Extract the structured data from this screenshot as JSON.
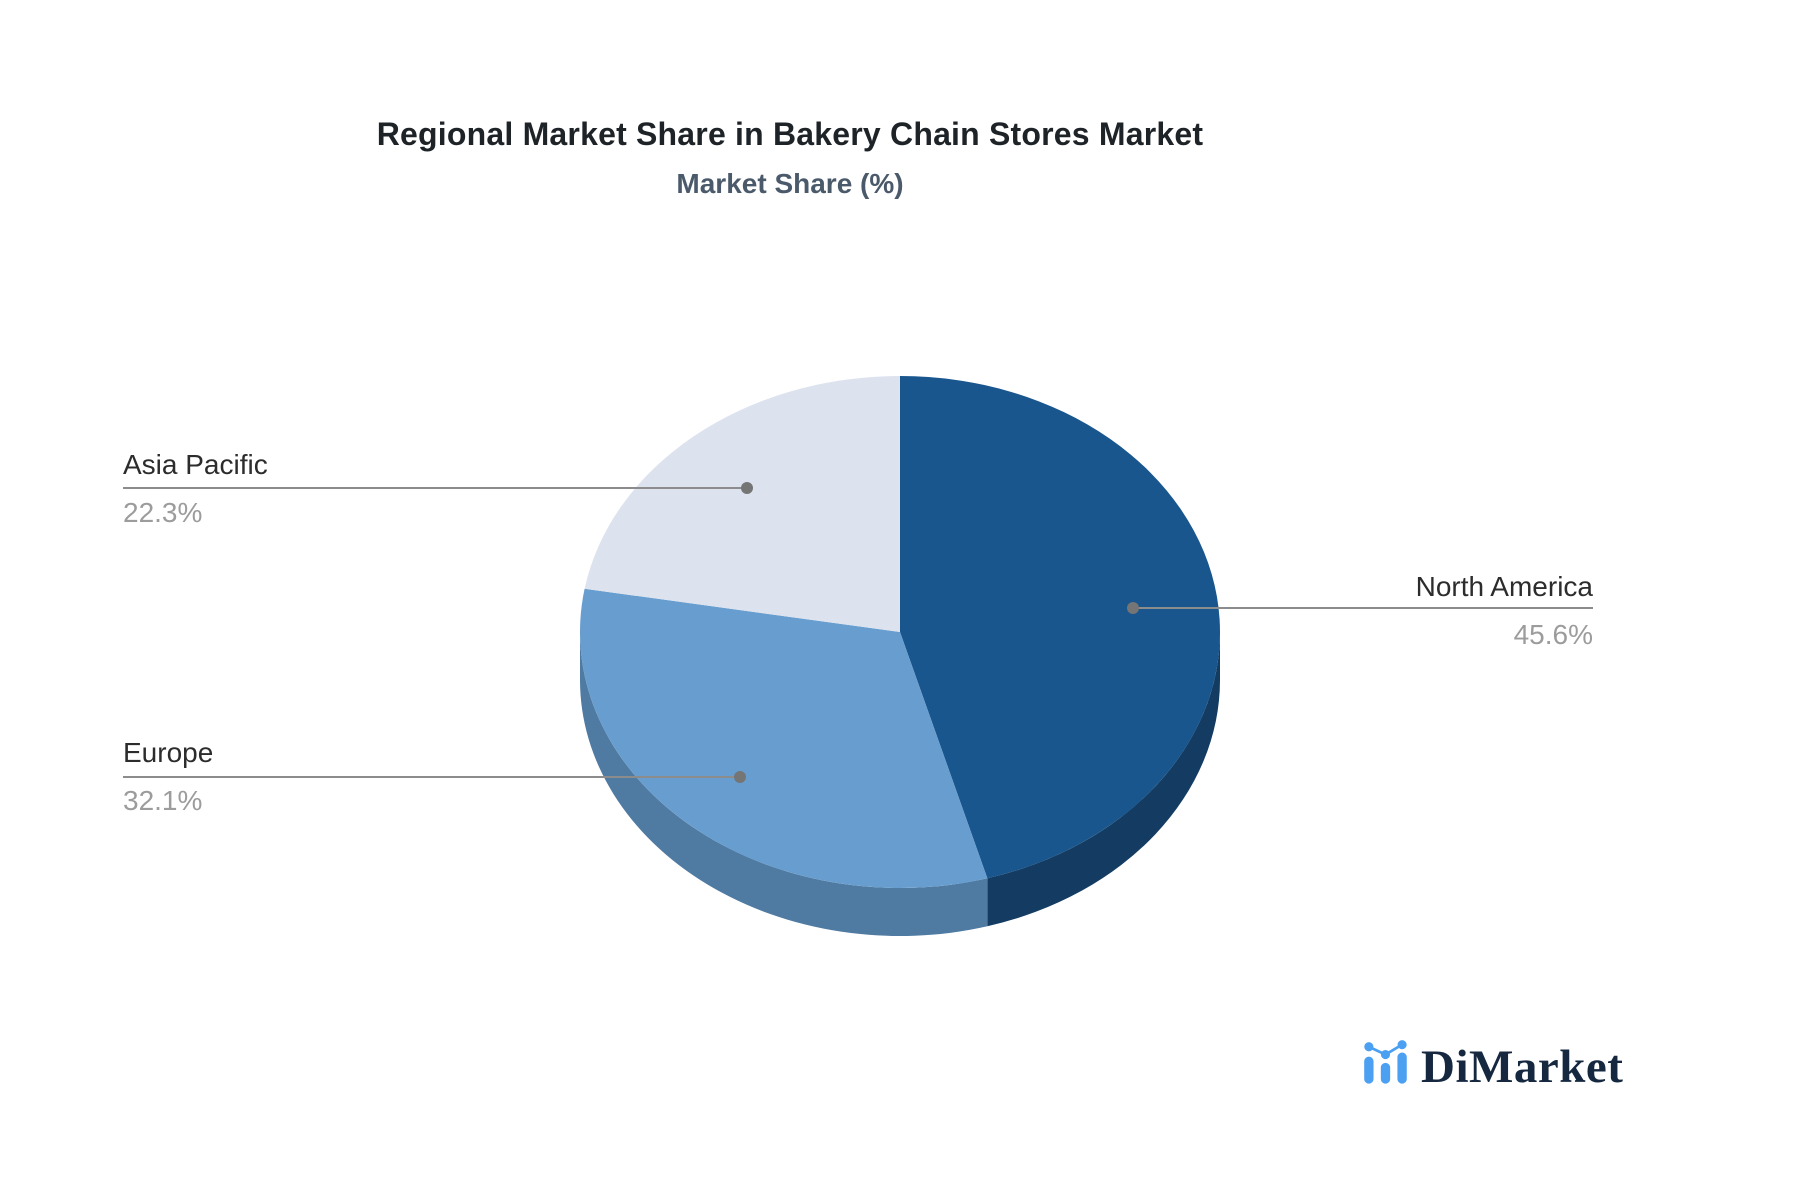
{
  "chart_data": {
    "type": "pie",
    "style": "3d",
    "title": "Regional Market Share in Bakery Chain Stores Market",
    "subtitle": "Market Share (%)",
    "unit": "%",
    "direction": "clockwise",
    "start_angle_deg": 0,
    "legend_position": "none (leader-line labels)",
    "slices": [
      {
        "label": "North America",
        "value": 45.6,
        "display": "45.6%",
        "color": "#19568D",
        "side_color": "#143C63"
      },
      {
        "label": "Europe",
        "value": 32.1,
        "display": "32.1%",
        "color": "#689ECF",
        "side_color": "#4F7AA2"
      },
      {
        "label": "Asia Pacific",
        "value": 22.3,
        "display": "22.3%",
        "color": "#DDE3EE",
        "side_color": "#B9C4D6"
      }
    ]
  },
  "theme": {
    "background": "#FFFFFF",
    "title_color": "#1E2328",
    "subtitle_color": "#4B5A6B",
    "label_name_color": "#2C2C2C",
    "label_pct_color": "#9C9C9C",
    "leader_line_color": "#8C8C8C",
    "leader_dot_color": "#757575",
    "logo_blue": "#4BA0F2",
    "logo_text_color": "#152840"
  },
  "footer": {
    "brand": "DiMarket",
    "logo_icon": "bar-line-chart-icon"
  }
}
